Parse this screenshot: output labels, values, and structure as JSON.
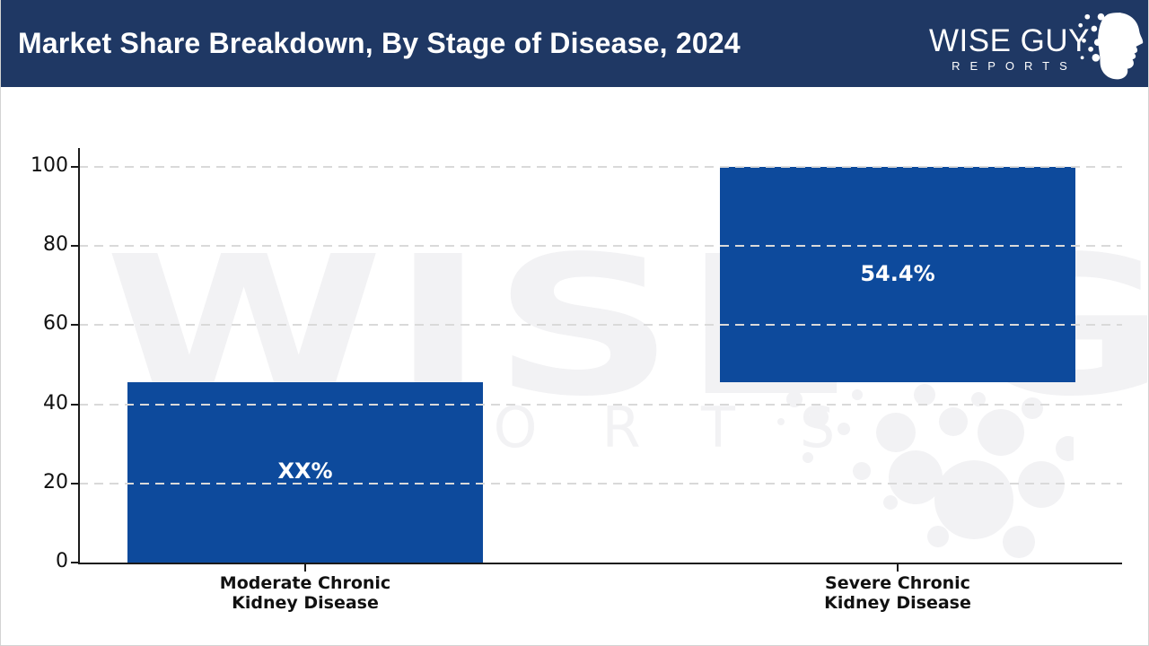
{
  "header": {
    "bg_color": "#1f3864",
    "title": "Market Share Breakdown, By Stage of Disease, 2024",
    "logo": {
      "name": "WISE GUY",
      "sub": "REPORTS",
      "face_icon": "face-dots-icon"
    }
  },
  "watermark": {
    "line1": "WISE GUY",
    "line2": "REPORTS"
  },
  "chart_data": {
    "type": "bar",
    "title": "Market Share Breakdown, By Stage of Disease, 2024",
    "categories": [
      "Moderate Chronic Kidney Disease",
      "Severe Chronic Kidney Disease"
    ],
    "category_label_lines": [
      [
        "Moderate Chronic",
        "Kidney Disease"
      ],
      [
        "Severe Chronic",
        "Kidney Disease"
      ]
    ],
    "bars": [
      {
        "category": "Moderate Chronic Kidney Disease",
        "label": "XX%",
        "base": 0,
        "top": 45.6
      },
      {
        "category": "Severe Chronic Kidney Disease",
        "label": "54.4%",
        "base": 45.6,
        "top": 100
      }
    ],
    "bar_color": "#0d4a9c",
    "xlabel": "",
    "ylabel": "",
    "yticks": [
      0,
      20,
      40,
      60,
      80,
      100
    ],
    "ylim": [
      0,
      104.8
    ],
    "grid": "horizontal-dashed",
    "gridline_color": "#d9d9d9",
    "axis_color": "#1a1a1a",
    "legend": "none"
  }
}
